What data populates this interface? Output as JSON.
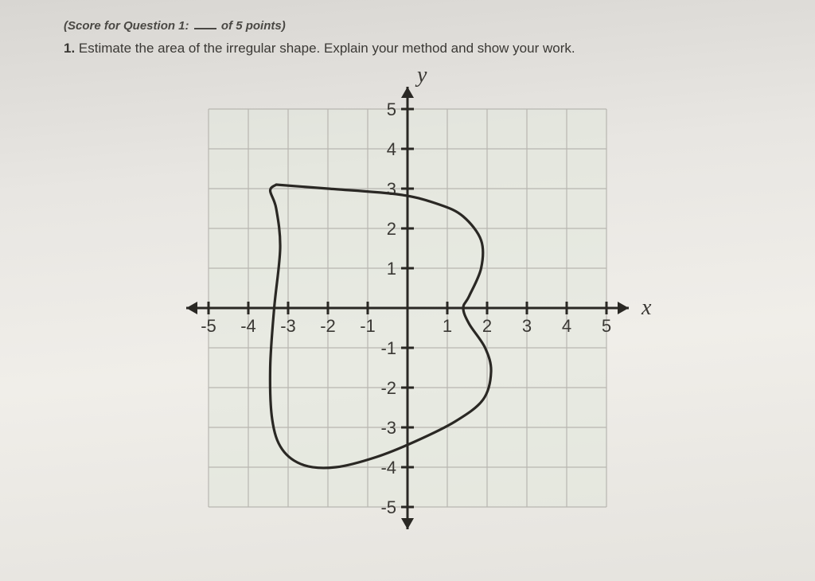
{
  "header": {
    "score_prefix": "(Score for Question 1:",
    "score_suffix": "of 5 points)"
  },
  "question": {
    "number": "1.",
    "text": "Estimate the area of the irregular shape. Explain your method and show your work."
  },
  "chart": {
    "type": "coordinate-grid",
    "x_axis_label": "x",
    "y_axis_label": "y",
    "xlim": [
      -5,
      5
    ],
    "ylim": [
      -5,
      5
    ],
    "tick_step": 1,
    "x_tick_labels": [
      "-5",
      "-4",
      "-3",
      "-2",
      "-1",
      "",
      "1",
      "2",
      "3",
      "4",
      "5"
    ],
    "y_tick_labels": [
      "-5",
      "-4",
      "-3",
      "-2",
      "-1",
      "",
      "1",
      "2",
      "3",
      "4",
      "5"
    ],
    "axis_color": "#2a2824",
    "grid_color": "#b8b6b1",
    "background_color": "#e2e8dc",
    "tick_label_fontsize": 22,
    "axis_label_fontsize": 28,
    "shape_stroke": "#2a2824",
    "shape_stroke_width": 3.2,
    "shape_points": [
      [
        -3.3,
        3.1
      ],
      [
        -2.0,
        3.0
      ],
      [
        -0.2,
        2.85
      ],
      [
        0.8,
        2.6
      ],
      [
        1.4,
        2.3
      ],
      [
        1.85,
        1.7
      ],
      [
        1.85,
        1.0
      ],
      [
        1.55,
        0.3
      ],
      [
        1.4,
        0.0
      ],
      [
        1.55,
        -0.4
      ],
      [
        1.95,
        -1.0
      ],
      [
        2.1,
        -1.6
      ],
      [
        1.9,
        -2.3
      ],
      [
        1.2,
        -2.85
      ],
      [
        0.2,
        -3.35
      ],
      [
        -0.8,
        -3.75
      ],
      [
        -1.8,
        -4.0
      ],
      [
        -2.6,
        -3.95
      ],
      [
        -3.15,
        -3.55
      ],
      [
        -3.4,
        -2.8
      ],
      [
        -3.45,
        -1.5
      ],
      [
        -3.35,
        0.0
      ],
      [
        -3.2,
        1.5
      ],
      [
        -3.3,
        2.5
      ],
      [
        -3.45,
        2.95
      ],
      [
        -3.3,
        3.1
      ]
    ]
  }
}
